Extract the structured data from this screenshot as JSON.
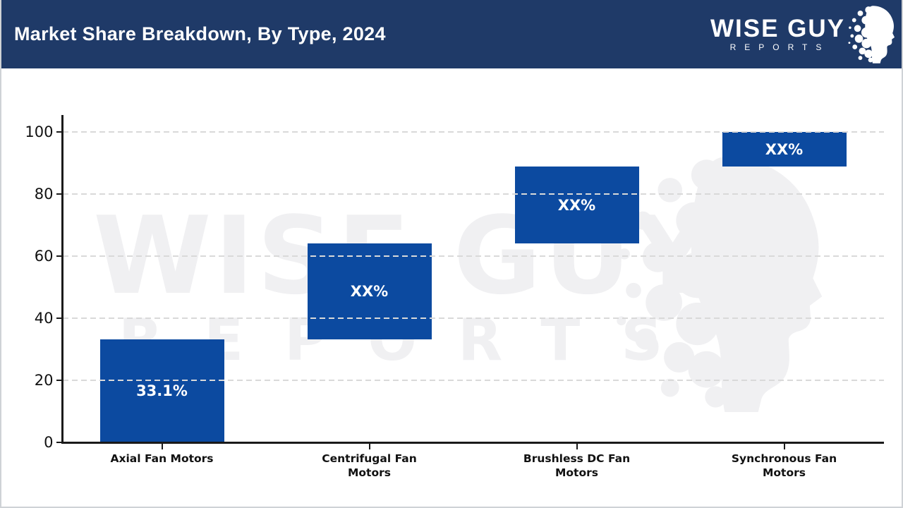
{
  "header": {
    "title": "Market Share Breakdown, By Type, 2024",
    "bg_color": "#1f3a68",
    "logo": {
      "line1": "WISE GUY",
      "line2": "REPORTS",
      "icon": "wiseguy-dotted-head-icon"
    }
  },
  "watermark": {
    "line1": "WISE GUY",
    "line2": "REPORTS",
    "icon": "wiseguy-dotted-head-icon",
    "color": "#f0f0f2"
  },
  "chart_data": {
    "type": "bar",
    "subtype": "waterfall",
    "title": "Market Share Breakdown, By Type, 2024",
    "categories": [
      "Axial Fan Motors",
      "Centrifugal Fan\nMotors",
      "Brushless DC Fan\nMotors",
      "Synchronous Fan\nMotors"
    ],
    "segments": [
      {
        "category": "Axial Fan Motors",
        "start": 0,
        "end": 33.1,
        "value": 33.1,
        "value_label": "33.1%"
      },
      {
        "category": "Centrifugal Fan Motors",
        "start": 33.1,
        "end": 64.0,
        "value": 30.9,
        "value_label": "XX%"
      },
      {
        "category": "Brushless DC Fan Motors",
        "start": 64.0,
        "end": 88.8,
        "value": 24.8,
        "value_label": "XX%"
      },
      {
        "category": "Synchronous Fan Motors",
        "start": 88.8,
        "end": 100.0,
        "value": 11.2,
        "value_label": "XX%"
      }
    ],
    "y_ticks": [
      0,
      20,
      40,
      60,
      80,
      100
    ],
    "ylim": [
      0,
      105
    ],
    "xlabel": "",
    "ylabel": "",
    "grid": "horizontal-dashed-over-bars",
    "legend": "none",
    "bar_color": "#0c4aa0",
    "bar_label_color": "#ffffff"
  }
}
